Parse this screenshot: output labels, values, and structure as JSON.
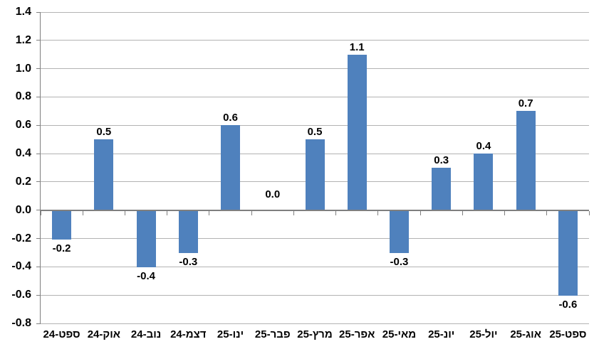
{
  "chart_data": {
    "type": "bar",
    "title": "",
    "xlabel": "",
    "ylabel": "",
    "categories": [
      "ספט-24",
      "אוק-24",
      "נוב-24",
      "דצמ-24",
      "ינו-25",
      "פבר-25",
      "מרץ-25",
      "אפר-25",
      "מאי-25",
      "יונ-25",
      "יול-25",
      "אוג-25",
      "ספט-25"
    ],
    "values": [
      -0.2,
      0.5,
      -0.4,
      -0.3,
      0.6,
      0.0,
      0.5,
      1.1,
      -0.3,
      0.3,
      0.4,
      0.7,
      -0.6
    ],
    "data_labels": [
      "-0.2",
      "0.5",
      "-0.4",
      "-0.3",
      "0.6",
      "0.0",
      "0.5",
      "1.1",
      "-0.3",
      "0.3",
      "0.4",
      "0.7",
      "-0.6"
    ],
    "ylim": [
      -0.8,
      1.4
    ],
    "ytick_step": 0.2,
    "ytick_labels": [
      "1.4",
      "1.2",
      "1.0",
      "0.8",
      "0.6",
      "0.4",
      "0.2",
      "0.0",
      "-0.2",
      "-0.4",
      "-0.6",
      "-0.8"
    ],
    "grid": true,
    "legend": false,
    "rtl_labels": true,
    "colors": {
      "bar": "#4f81bd",
      "gridline": "#b3b3b3",
      "axis": "#7f7f7f",
      "text": "#000000"
    }
  }
}
